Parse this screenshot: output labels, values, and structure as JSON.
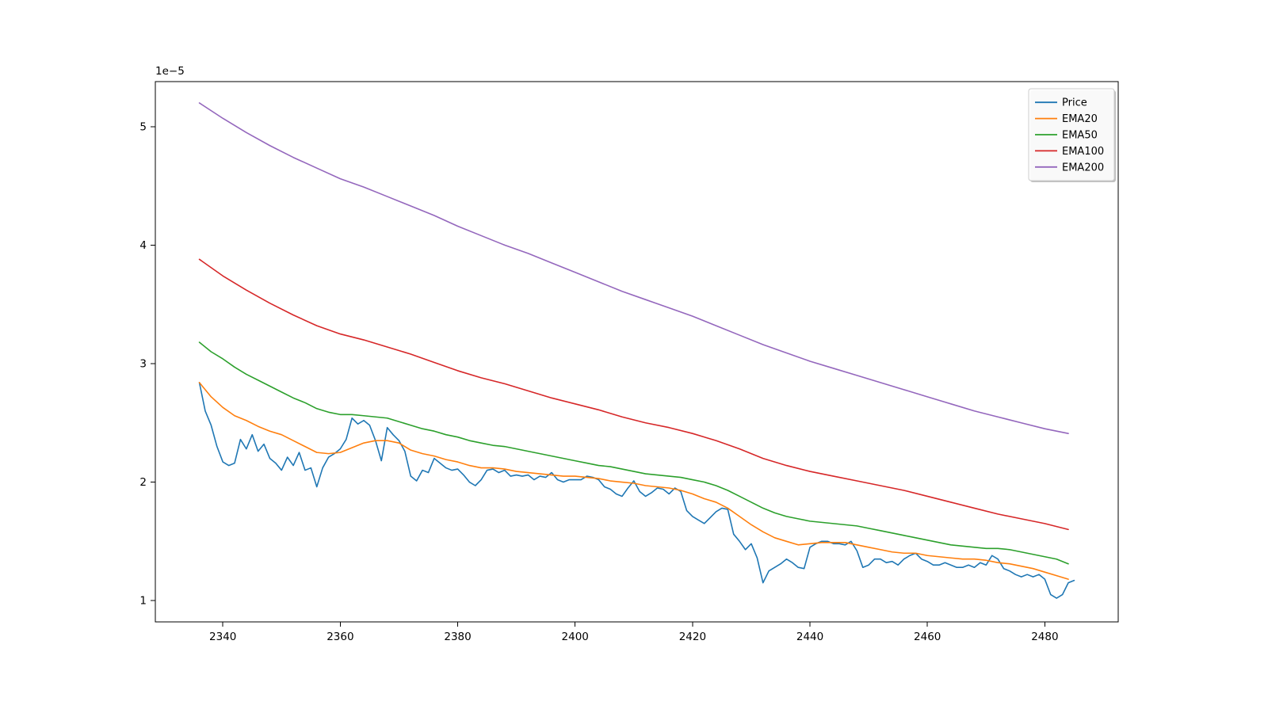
{
  "figure": {
    "background": "#ffffff",
    "offset_label": "1e−5"
  },
  "chart_data": {
    "type": "line",
    "title": "",
    "xlabel": "",
    "ylabel": "",
    "grid": false,
    "xlim": [
      2328.5,
      2492.5
    ],
    "ylim": [
      0.82,
      5.38
    ],
    "y_units": "1e-5",
    "xticks": [
      2340,
      2360,
      2380,
      2400,
      2420,
      2440,
      2460,
      2480
    ],
    "yticks": [
      1,
      2,
      3,
      4,
      5
    ],
    "legend": {
      "position": "upper right",
      "entries": [
        "Price",
        "EMA20",
        "EMA50",
        "EMA100",
        "EMA200"
      ]
    },
    "series": [
      {
        "name": "Price",
        "color": "#1f77b4",
        "x_start": 2336,
        "x_step": 1,
        "values": [
          2.84,
          2.6,
          2.48,
          2.3,
          2.17,
          2.14,
          2.16,
          2.36,
          2.28,
          2.4,
          2.26,
          2.32,
          2.2,
          2.16,
          2.1,
          2.21,
          2.14,
          2.25,
          2.1,
          2.12,
          1.96,
          2.12,
          2.21,
          2.24,
          2.28,
          2.36,
          2.54,
          2.49,
          2.52,
          2.48,
          2.35,
          2.18,
          2.46,
          2.4,
          2.35,
          2.26,
          2.05,
          2.01,
          2.1,
          2.08,
          2.2,
          2.16,
          2.12,
          2.1,
          2.11,
          2.06,
          2.0,
          1.97,
          2.02,
          2.1,
          2.11,
          2.08,
          2.1,
          2.05,
          2.06,
          2.05,
          2.06,
          2.02,
          2.05,
          2.04,
          2.08,
          2.02,
          2.0,
          2.02,
          2.02,
          2.02,
          2.05,
          2.04,
          2.02,
          1.96,
          1.94,
          1.9,
          1.88,
          1.95,
          2.01,
          1.92,
          1.88,
          1.91,
          1.95,
          1.94,
          1.9,
          1.95,
          1.92,
          1.76,
          1.71,
          1.68,
          1.65,
          1.7,
          1.75,
          1.78,
          1.77,
          1.56,
          1.5,
          1.43,
          1.48,
          1.36,
          1.15,
          1.25,
          1.28,
          1.31,
          1.35,
          1.32,
          1.28,
          1.27,
          1.45,
          1.48,
          1.5,
          1.5,
          1.48,
          1.48,
          1.47,
          1.5,
          1.42,
          1.28,
          1.3,
          1.35,
          1.35,
          1.32,
          1.33,
          1.3,
          1.35,
          1.38,
          1.4,
          1.35,
          1.33,
          1.3,
          1.3,
          1.32,
          1.3,
          1.28,
          1.28,
          1.3,
          1.28,
          1.32,
          1.3,
          1.38,
          1.35,
          1.27,
          1.25,
          1.22,
          1.2,
          1.22,
          1.2,
          1.22,
          1.18,
          1.05,
          1.02,
          1.05,
          1.15,
          1.17
        ]
      },
      {
        "name": "EMA20",
        "color": "#ff7f0e",
        "x_start": 2336,
        "x_step": 2,
        "values": [
          2.84,
          2.72,
          2.63,
          2.56,
          2.52,
          2.47,
          2.43,
          2.4,
          2.35,
          2.3,
          2.25,
          2.24,
          2.25,
          2.29,
          2.33,
          2.35,
          2.35,
          2.33,
          2.27,
          2.24,
          2.22,
          2.19,
          2.17,
          2.14,
          2.12,
          2.12,
          2.11,
          2.09,
          2.08,
          2.07,
          2.06,
          2.05,
          2.05,
          2.04,
          2.03,
          2.01,
          2.0,
          1.99,
          1.97,
          1.96,
          1.95,
          1.93,
          1.9,
          1.86,
          1.83,
          1.78,
          1.71,
          1.64,
          1.58,
          1.53,
          1.5,
          1.47,
          1.48,
          1.49,
          1.49,
          1.49,
          1.47,
          1.45,
          1.43,
          1.41,
          1.4,
          1.4,
          1.38,
          1.37,
          1.36,
          1.35,
          1.35,
          1.34,
          1.32,
          1.31,
          1.29,
          1.27,
          1.24,
          1.21,
          1.18
        ]
      },
      {
        "name": "EMA50",
        "color": "#2ca02c",
        "x_start": 2336,
        "x_step": 2,
        "values": [
          3.18,
          3.1,
          3.04,
          2.97,
          2.91,
          2.86,
          2.81,
          2.76,
          2.71,
          2.67,
          2.62,
          2.59,
          2.57,
          2.57,
          2.56,
          2.55,
          2.54,
          2.51,
          2.48,
          2.45,
          2.43,
          2.4,
          2.38,
          2.35,
          2.33,
          2.31,
          2.3,
          2.28,
          2.26,
          2.24,
          2.22,
          2.2,
          2.18,
          2.16,
          2.14,
          2.13,
          2.11,
          2.09,
          2.07,
          2.06,
          2.05,
          2.04,
          2.02,
          2.0,
          1.97,
          1.93,
          1.88,
          1.83,
          1.78,
          1.74,
          1.71,
          1.69,
          1.67,
          1.66,
          1.65,
          1.64,
          1.63,
          1.61,
          1.59,
          1.57,
          1.55,
          1.53,
          1.51,
          1.49,
          1.47,
          1.46,
          1.45,
          1.44,
          1.44,
          1.43,
          1.41,
          1.39,
          1.37,
          1.35,
          1.31
        ]
      },
      {
        "name": "EMA100",
        "color": "#d62728",
        "x_start": 2336,
        "x_step": 4,
        "values": [
          3.88,
          3.74,
          3.62,
          3.51,
          3.41,
          3.32,
          3.25,
          3.2,
          3.14,
          3.08,
          3.01,
          2.94,
          2.88,
          2.83,
          2.77,
          2.71,
          2.66,
          2.61,
          2.55,
          2.5,
          2.46,
          2.41,
          2.35,
          2.28,
          2.2,
          2.14,
          2.09,
          2.05,
          2.01,
          1.97,
          1.93,
          1.88,
          1.83,
          1.78,
          1.73,
          1.69,
          1.65,
          1.6
        ]
      },
      {
        "name": "EMA200",
        "color": "#9467bd",
        "x_start": 2336,
        "x_step": 4,
        "values": [
          5.2,
          5.07,
          4.95,
          4.84,
          4.74,
          4.65,
          4.56,
          4.49,
          4.41,
          4.33,
          4.25,
          4.16,
          4.08,
          4.0,
          3.93,
          3.85,
          3.77,
          3.69,
          3.61,
          3.54,
          3.47,
          3.4,
          3.32,
          3.24,
          3.16,
          3.09,
          3.02,
          2.96,
          2.9,
          2.84,
          2.78,
          2.72,
          2.66,
          2.6,
          2.55,
          2.5,
          2.45,
          2.41
        ]
      }
    ]
  }
}
